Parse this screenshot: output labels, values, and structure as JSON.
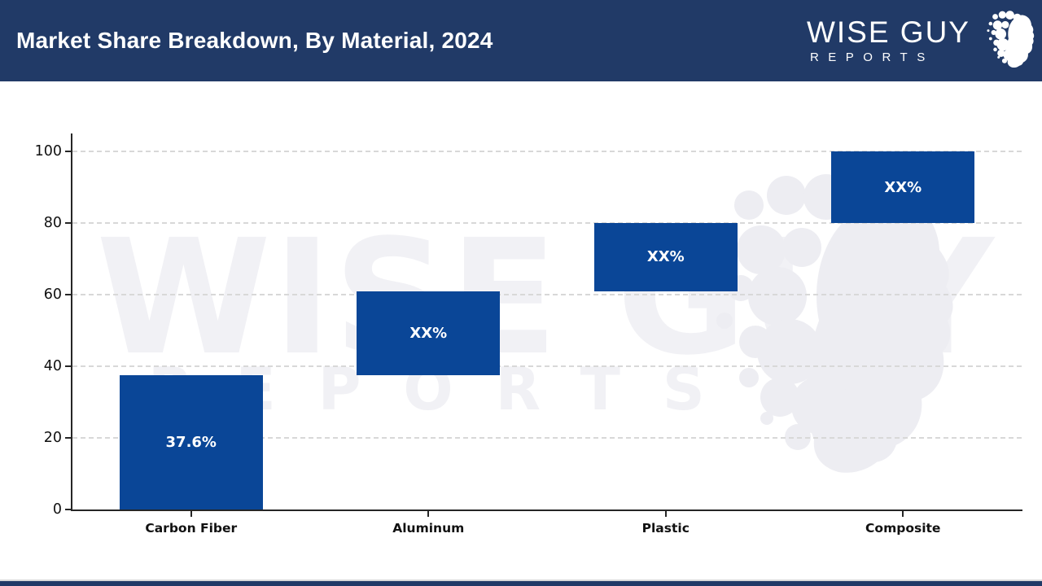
{
  "header": {
    "title": "Market Share Breakdown, By Material, 2024",
    "brand_line1": "WISE GUY",
    "brand_line2": "REPORTS",
    "bg_color": "#213a67"
  },
  "watermark": {
    "line1": "WISE GUY",
    "line2": "REPORTS"
  },
  "chart_data": {
    "type": "bar",
    "subtype": "waterfall",
    "title": "Market Share Breakdown, By Material, 2024",
    "categories": [
      "Carbon Fiber",
      "Aluminum",
      "Plastic",
      "Composite"
    ],
    "bars": [
      {
        "category": "Carbon Fiber",
        "start": 0,
        "end": 37.6,
        "label": "37.6%"
      },
      {
        "category": "Aluminum",
        "start": 37.6,
        "end": 61,
        "label": "XX%"
      },
      {
        "category": "Plastic",
        "start": 61,
        "end": 80,
        "label": "XX%"
      },
      {
        "category": "Composite",
        "start": 80,
        "end": 100,
        "label": "XX%"
      }
    ],
    "ylim": [
      0,
      105
    ],
    "yticks": [
      0,
      20,
      40,
      60,
      80,
      100
    ],
    "grid": "horizontal-dashed",
    "legend": "none",
    "bar_color": "#0a4697",
    "bar_label_color": "#ffffff",
    "axis_color": "#262626",
    "gridline_color": "#d8d8d8"
  }
}
